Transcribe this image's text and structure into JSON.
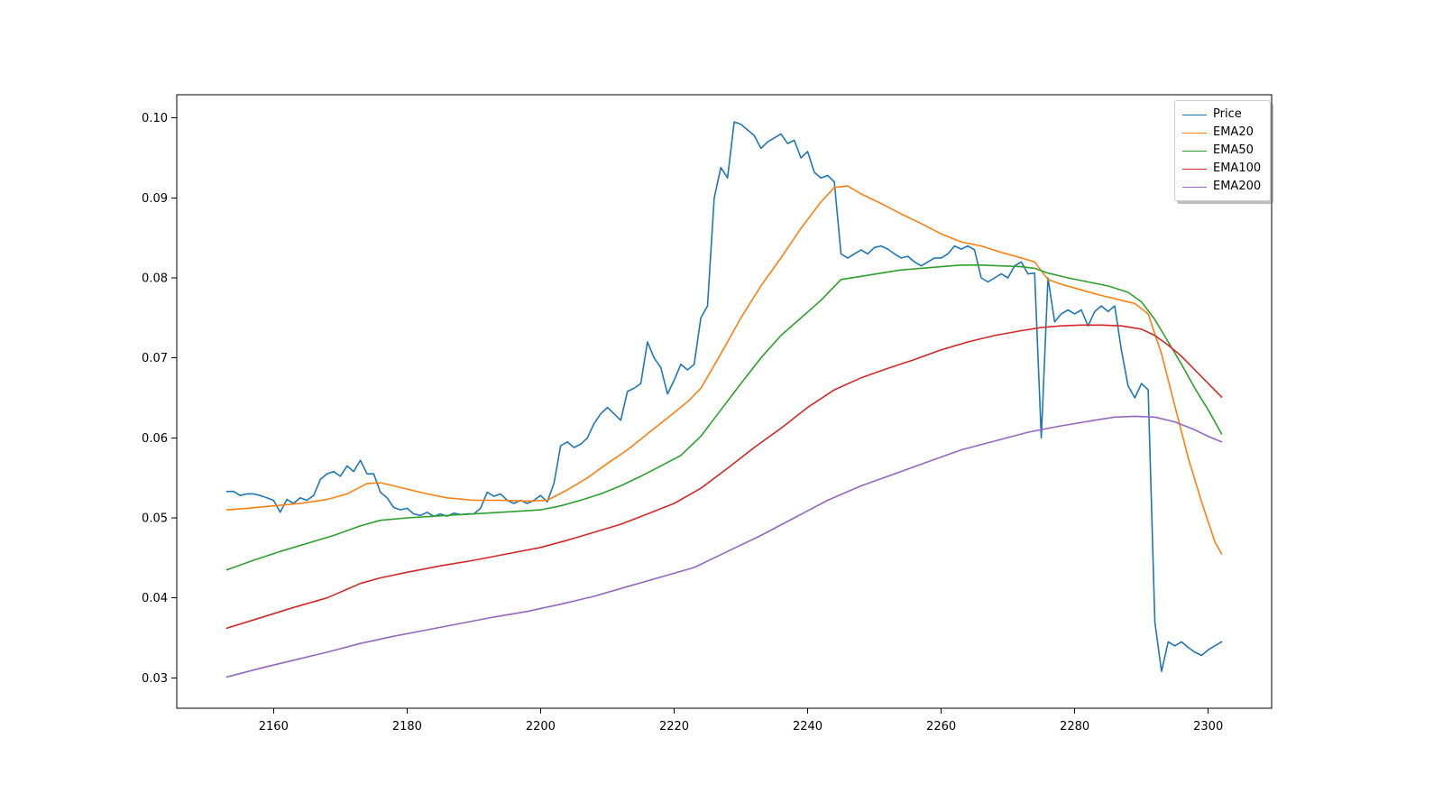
{
  "figure": {
    "background": "#ffffff",
    "axes_edge_color": "#000000",
    "tick_color": "#000000",
    "legend_border_color": "#cccccc"
  },
  "chart_data": {
    "type": "line",
    "title": "",
    "xlabel": "",
    "ylabel": "",
    "grid": false,
    "legend_position": "upper right",
    "xlim": [
      2145.5,
      2309.5
    ],
    "ylim": [
      0.0262,
      0.1029
    ],
    "x_ticks": [
      2160,
      2180,
      2200,
      2220,
      2240,
      2260,
      2280,
      2300
    ],
    "y_ticks": [
      0.03,
      0.04,
      0.05,
      0.06,
      0.07,
      0.08,
      0.09,
      0.1
    ],
    "series": [
      {
        "name": "Price",
        "color": "#1f77b4",
        "x_start": 2153,
        "x_step": 1,
        "y": [
          0.0533,
          0.0533,
          0.0528,
          0.053,
          0.053,
          0.0528,
          0.0525,
          0.0522,
          0.0507,
          0.0523,
          0.0518,
          0.0525,
          0.0522,
          0.0528,
          0.0548,
          0.0555,
          0.0558,
          0.0552,
          0.0565,
          0.0558,
          0.0572,
          0.0555,
          0.0555,
          0.0532,
          0.0525,
          0.0513,
          0.051,
          0.0512,
          0.0505,
          0.0503,
          0.0507,
          0.0502,
          0.0505,
          0.0502,
          0.0506,
          0.0504,
          0.0505,
          0.0505,
          0.0512,
          0.0532,
          0.0527,
          0.053,
          0.0522,
          0.0518,
          0.0522,
          0.0518,
          0.0522,
          0.0528,
          0.052,
          0.0543,
          0.059,
          0.0595,
          0.0588,
          0.0592,
          0.06,
          0.0618,
          0.063,
          0.0638,
          0.063,
          0.0622,
          0.0658,
          0.0662,
          0.0668,
          0.072,
          0.07,
          0.0688,
          0.0655,
          0.0672,
          0.0692,
          0.0685,
          0.0692,
          0.075,
          0.0765,
          0.09,
          0.0938,
          0.0925,
          0.0995,
          0.0992,
          0.0985,
          0.0978,
          0.0962,
          0.097,
          0.0975,
          0.098,
          0.0968,
          0.0972,
          0.095,
          0.0958,
          0.0932,
          0.0925,
          0.0928,
          0.092,
          0.083,
          0.0825,
          0.083,
          0.0835,
          0.083,
          0.0838,
          0.084,
          0.0836,
          0.083,
          0.0825,
          0.0827,
          0.082,
          0.0815,
          0.082,
          0.0825,
          0.0825,
          0.083,
          0.084,
          0.0836,
          0.084,
          0.0835,
          0.08,
          0.0795,
          0.08,
          0.0805,
          0.08,
          0.0815,
          0.082,
          0.0805,
          0.0806,
          0.06,
          0.08,
          0.0745,
          0.0755,
          0.076,
          0.0755,
          0.076,
          0.074,
          0.0758,
          0.0765,
          0.0758,
          0.0765,
          0.071,
          0.0665,
          0.065,
          0.0668,
          0.066,
          0.037,
          0.0308,
          0.0345,
          0.034,
          0.0345,
          0.0338,
          0.0332,
          0.0328,
          0.0335,
          0.034,
          0.0345
        ]
      },
      {
        "name": "EMA20",
        "color": "#ff7f0e",
        "x": [
          2153,
          2156,
          2160,
          2164,
          2168,
          2171,
          2174,
          2176,
          2178,
          2180,
          2183,
          2186,
          2190,
          2194,
          2198,
          2201,
          2204,
          2207,
          2210,
          2213,
          2216,
          2219,
          2222,
          2224,
          2227,
          2230,
          2233,
          2236,
          2239,
          2242,
          2244,
          2246,
          2248,
          2251,
          2254,
          2257,
          2260,
          2263,
          2266,
          2269,
          2272,
          2274,
          2276,
          2278,
          2281,
          2284,
          2287,
          2289,
          2291,
          2293,
          2295,
          2297,
          2299,
          2301,
          2302
        ],
        "y": [
          0.051,
          0.0512,
          0.0515,
          0.0518,
          0.0523,
          0.053,
          0.0543,
          0.0544,
          0.054,
          0.0536,
          0.053,
          0.0525,
          0.0522,
          0.0522,
          0.0521,
          0.0522,
          0.0535,
          0.055,
          0.0568,
          0.0585,
          0.0605,
          0.0625,
          0.0645,
          0.0662,
          0.0705,
          0.075,
          0.079,
          0.0825,
          0.0862,
          0.0895,
          0.0913,
          0.0915,
          0.0905,
          0.0893,
          0.088,
          0.0868,
          0.0855,
          0.0845,
          0.084,
          0.0832,
          0.0825,
          0.082,
          0.0798,
          0.0792,
          0.0785,
          0.0778,
          0.0772,
          0.0768,
          0.0755,
          0.0705,
          0.064,
          0.0575,
          0.052,
          0.047,
          0.0455
        ]
      },
      {
        "name": "EMA50",
        "color": "#2ca02c",
        "x": [
          2153,
          2157,
          2161,
          2165,
          2169,
          2173,
          2176,
          2180,
          2184,
          2188,
          2192,
          2196,
          2200,
          2203,
          2206,
          2209,
          2212,
          2215,
          2218,
          2221,
          2224,
          2227,
          2230,
          2233,
          2236,
          2239,
          2242,
          2245,
          2248,
          2251,
          2254,
          2257,
          2260,
          2263,
          2266,
          2269,
          2272,
          2274,
          2276,
          2279,
          2282,
          2285,
          2288,
          2290,
          2292,
          2294,
          2296,
          2298,
          2300,
          2302
        ],
        "y": [
          0.0435,
          0.0447,
          0.0458,
          0.0468,
          0.0478,
          0.049,
          0.0497,
          0.05,
          0.0502,
          0.0504,
          0.0506,
          0.0508,
          0.051,
          0.0515,
          0.0522,
          0.053,
          0.054,
          0.0552,
          0.0565,
          0.0578,
          0.0602,
          0.0635,
          0.0668,
          0.07,
          0.0728,
          0.075,
          0.0772,
          0.0798,
          0.0802,
          0.0806,
          0.081,
          0.0812,
          0.0814,
          0.0816,
          0.0816,
          0.0815,
          0.0814,
          0.0812,
          0.0806,
          0.08,
          0.0795,
          0.079,
          0.0782,
          0.077,
          0.0748,
          0.072,
          0.0692,
          0.0662,
          0.0635,
          0.0605
        ]
      },
      {
        "name": "EMA100",
        "color": "#d62728",
        "x": [
          2153,
          2158,
          2163,
          2168,
          2173,
          2176,
          2180,
          2185,
          2190,
          2195,
          2200,
          2204,
          2208,
          2212,
          2216,
          2220,
          2224,
          2228,
          2232,
          2236,
          2240,
          2244,
          2248,
          2252,
          2256,
          2260,
          2264,
          2268,
          2272,
          2275,
          2278,
          2281,
          2284,
          2287,
          2290,
          2292,
          2294,
          2296,
          2298,
          2300,
          2302
        ],
        "y": [
          0.0362,
          0.0375,
          0.0388,
          0.04,
          0.0418,
          0.0425,
          0.0432,
          0.044,
          0.0447,
          0.0455,
          0.0463,
          0.0472,
          0.0482,
          0.0492,
          0.0505,
          0.0518,
          0.0537,
          0.0562,
          0.0588,
          0.0612,
          0.0638,
          0.066,
          0.0675,
          0.0687,
          0.0698,
          0.071,
          0.072,
          0.0728,
          0.0734,
          0.0738,
          0.074,
          0.0741,
          0.0741,
          0.074,
          0.0736,
          0.0728,
          0.0716,
          0.0702,
          0.0685,
          0.0668,
          0.0651
        ]
      },
      {
        "name": "EMA200",
        "color": "#9467bd",
        "x": [
          2153,
          2158,
          2163,
          2168,
          2173,
          2178,
          2183,
          2188,
          2193,
          2198,
          2203,
          2208,
          2213,
          2218,
          2223,
          2228,
          2233,
          2238,
          2243,
          2248,
          2253,
          2258,
          2263,
          2268,
          2273,
          2278,
          2283,
          2286,
          2289,
          2292,
          2295,
          2298,
          2300,
          2302
        ],
        "y": [
          0.0301,
          0.0312,
          0.0322,
          0.0332,
          0.0343,
          0.0352,
          0.036,
          0.0368,
          0.0376,
          0.0383,
          0.0392,
          0.0402,
          0.0414,
          0.0426,
          0.0438,
          0.0458,
          0.0478,
          0.05,
          0.0522,
          0.054,
          0.0555,
          0.057,
          0.0585,
          0.0596,
          0.0607,
          0.0615,
          0.0622,
          0.0626,
          0.0627,
          0.0626,
          0.062,
          0.061,
          0.0602,
          0.0595
        ]
      }
    ]
  }
}
